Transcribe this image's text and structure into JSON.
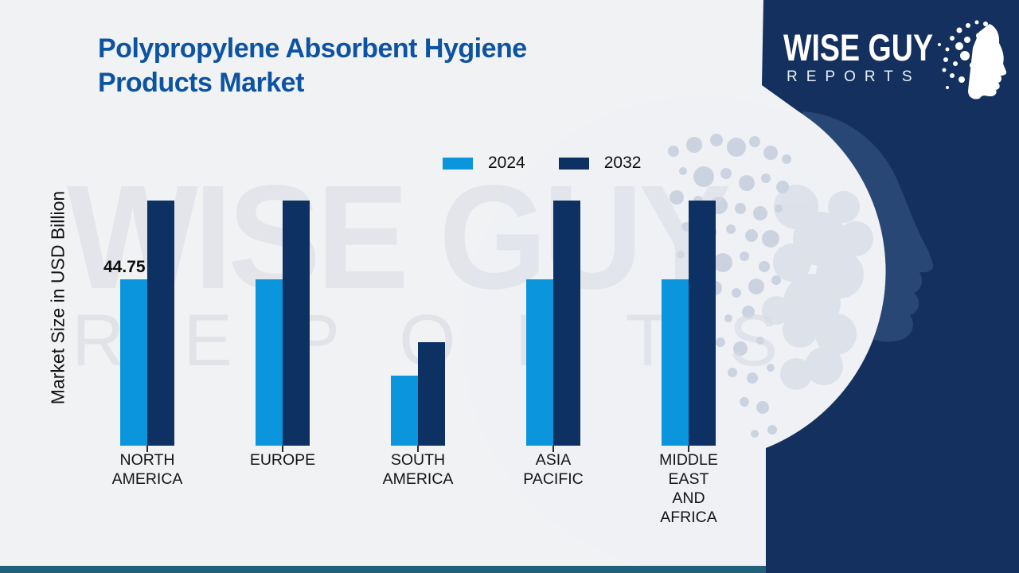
{
  "title": {
    "line1": "Polypropylene Absorbent Hygiene",
    "line2": "Products Market"
  },
  "logo": {
    "name": "WISE GUY",
    "sub": "REPORTS"
  },
  "watermark": {
    "line1": "WISE GUY",
    "line2": "REPORTS"
  },
  "colors": {
    "background": "#f1f2f3",
    "title_blue": "#0c53a2",
    "series_2024": "#0b95dd",
    "series_2032": "#0d3163",
    "corner_navy": "#14305e",
    "bottom_teal": "#20607a"
  },
  "chart_data": {
    "type": "bar",
    "title": "Polypropylene Absorbent Hygiene Products Market",
    "xlabel": "",
    "ylabel": "Market Size in USD Billion",
    "categories": [
      "NORTH AMERICA",
      "EUROPE",
      "SOUTH AMERICA",
      "ASIA PACIFIC",
      "MIDDLE EAST AND AFRICA"
    ],
    "x_tick_lines": [
      [
        "NORTH",
        "AMERICA"
      ],
      [
        "EUROPE"
      ],
      [
        "SOUTH",
        "AMERICA"
      ],
      [
        "ASIA",
        "PACIFIC"
      ],
      [
        "MIDDLE",
        "EAST",
        "AND",
        "AFRICA"
      ]
    ],
    "series": [
      {
        "name": "2024",
        "color": "#0b95dd",
        "values": [
          44.75,
          44.7,
          18.8,
          44.7,
          44.7
        ]
      },
      {
        "name": "2032",
        "color": "#0d3163",
        "values": [
          66,
          66,
          27.8,
          66,
          66
        ]
      }
    ],
    "value_labels": [
      {
        "series": "2024",
        "category": "NORTH AMERICA",
        "text": "44.75"
      }
    ],
    "ylim": [
      0,
      70
    ],
    "grid": false,
    "legend_position": "top"
  }
}
